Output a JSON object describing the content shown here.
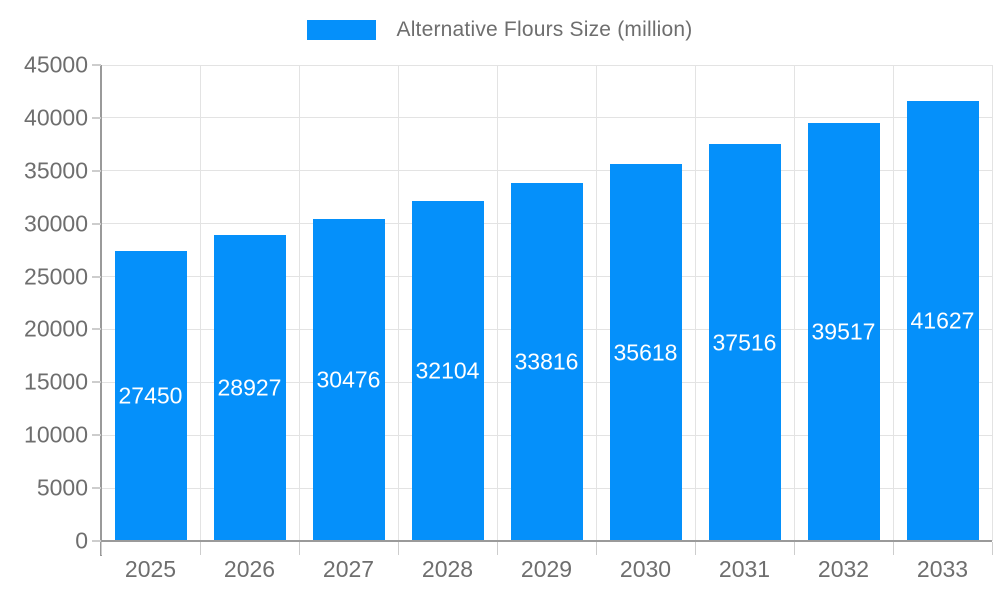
{
  "chart_data": {
    "type": "bar",
    "legend_label": "Alternative Flours Size (million)",
    "legend_position": "top",
    "categories": [
      "2025",
      "2026",
      "2027",
      "2028",
      "2029",
      "2030",
      "2031",
      "2032",
      "2033"
    ],
    "values": [
      27450,
      28927,
      30476,
      32104,
      33816,
      35618,
      37516,
      39517,
      41627
    ],
    "title": "",
    "xlabel": "",
    "ylabel": "",
    "ylim": [
      0,
      45000
    ],
    "ytick_step": 5000,
    "grid": true,
    "bar_labels_visible": true,
    "colors": {
      "bar": "#0590FA",
      "bar_label": "#FFFFFF",
      "grid": "#E3E3E3",
      "axis": "#9A9A9A",
      "tick_line": "#CDCDCD",
      "tick_text": "#6E6E6E"
    }
  }
}
